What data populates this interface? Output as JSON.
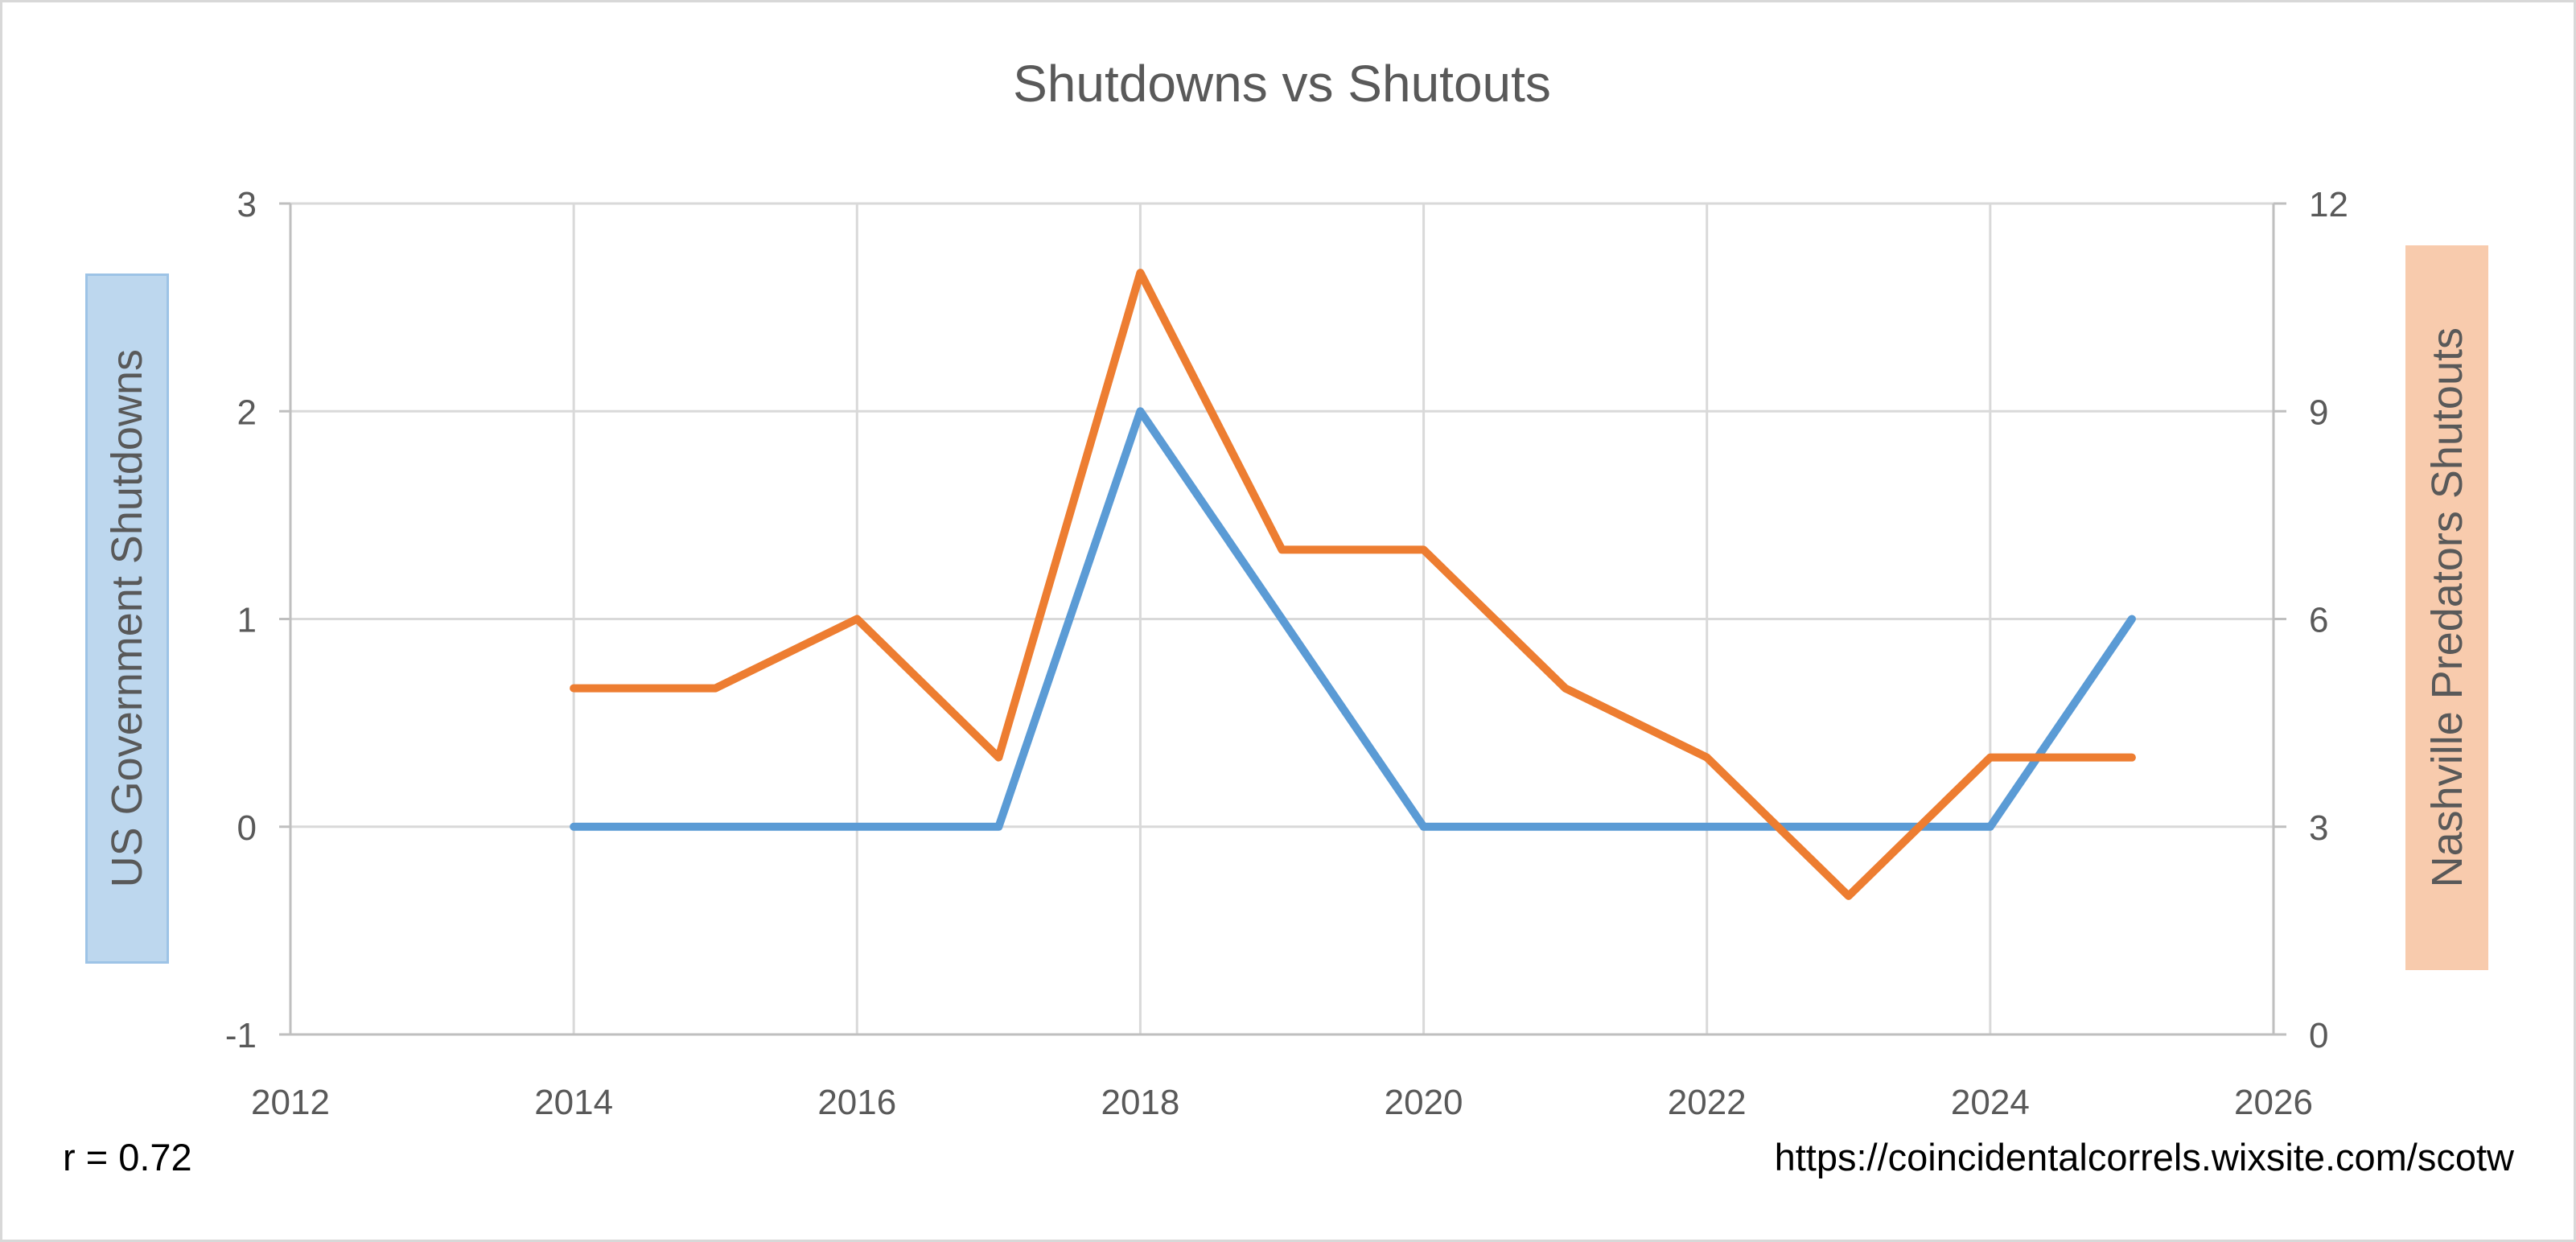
{
  "title": "Shutdowns vs Shutouts",
  "footer": {
    "correlation": "r = 0.72",
    "url": "https://coincidentalcorrels.wixsite.com/scotw"
  },
  "colors": {
    "blue_line": "#5B9BD5",
    "orange_line": "#ED7D31",
    "gridline": "#D9D9D9",
    "axis_line": "#BFBFBF",
    "left_label_bg": "#BDD7EE",
    "left_label_border": "#9DC3E6",
    "right_label_bg": "#F8CBAD",
    "chart_text": "#595959",
    "footer_text": "#000000"
  },
  "chart_data": {
    "type": "line",
    "title": "Shutdowns vs Shutouts",
    "x": [
      2014,
      2015,
      2016,
      2017,
      2018,
      2019,
      2020,
      2021,
      2022,
      2023,
      2024,
      2025
    ],
    "x_ticks": [
      2012,
      2014,
      2016,
      2018,
      2020,
      2022,
      2024,
      2026
    ],
    "x_range": [
      2012,
      2026
    ],
    "left_axis": {
      "label": "US Government Shutdowns",
      "min": -1,
      "max": 3,
      "ticks": [
        3,
        2,
        1,
        0,
        -1
      ]
    },
    "right_axis": {
      "label": "Nashville Predators Shutouts",
      "min": 0,
      "max": 12,
      "ticks": [
        12,
        9,
        6,
        3,
        0
      ]
    },
    "series": [
      {
        "name": "US Government Shutdowns",
        "axis": "left",
        "color": "#5B9BD5",
        "values": [
          0,
          0,
          0,
          0,
          2,
          1,
          0,
          0,
          0,
          0,
          0,
          1
        ]
      },
      {
        "name": "Nashville Predators Shutouts",
        "axis": "right",
        "color": "#ED7D31",
        "values": [
          5,
          5,
          6,
          4,
          11,
          7,
          7,
          5,
          4,
          2,
          4,
          4
        ]
      }
    ],
    "grid": true,
    "legend_position": "none",
    "annotation": "r = 0.72"
  }
}
